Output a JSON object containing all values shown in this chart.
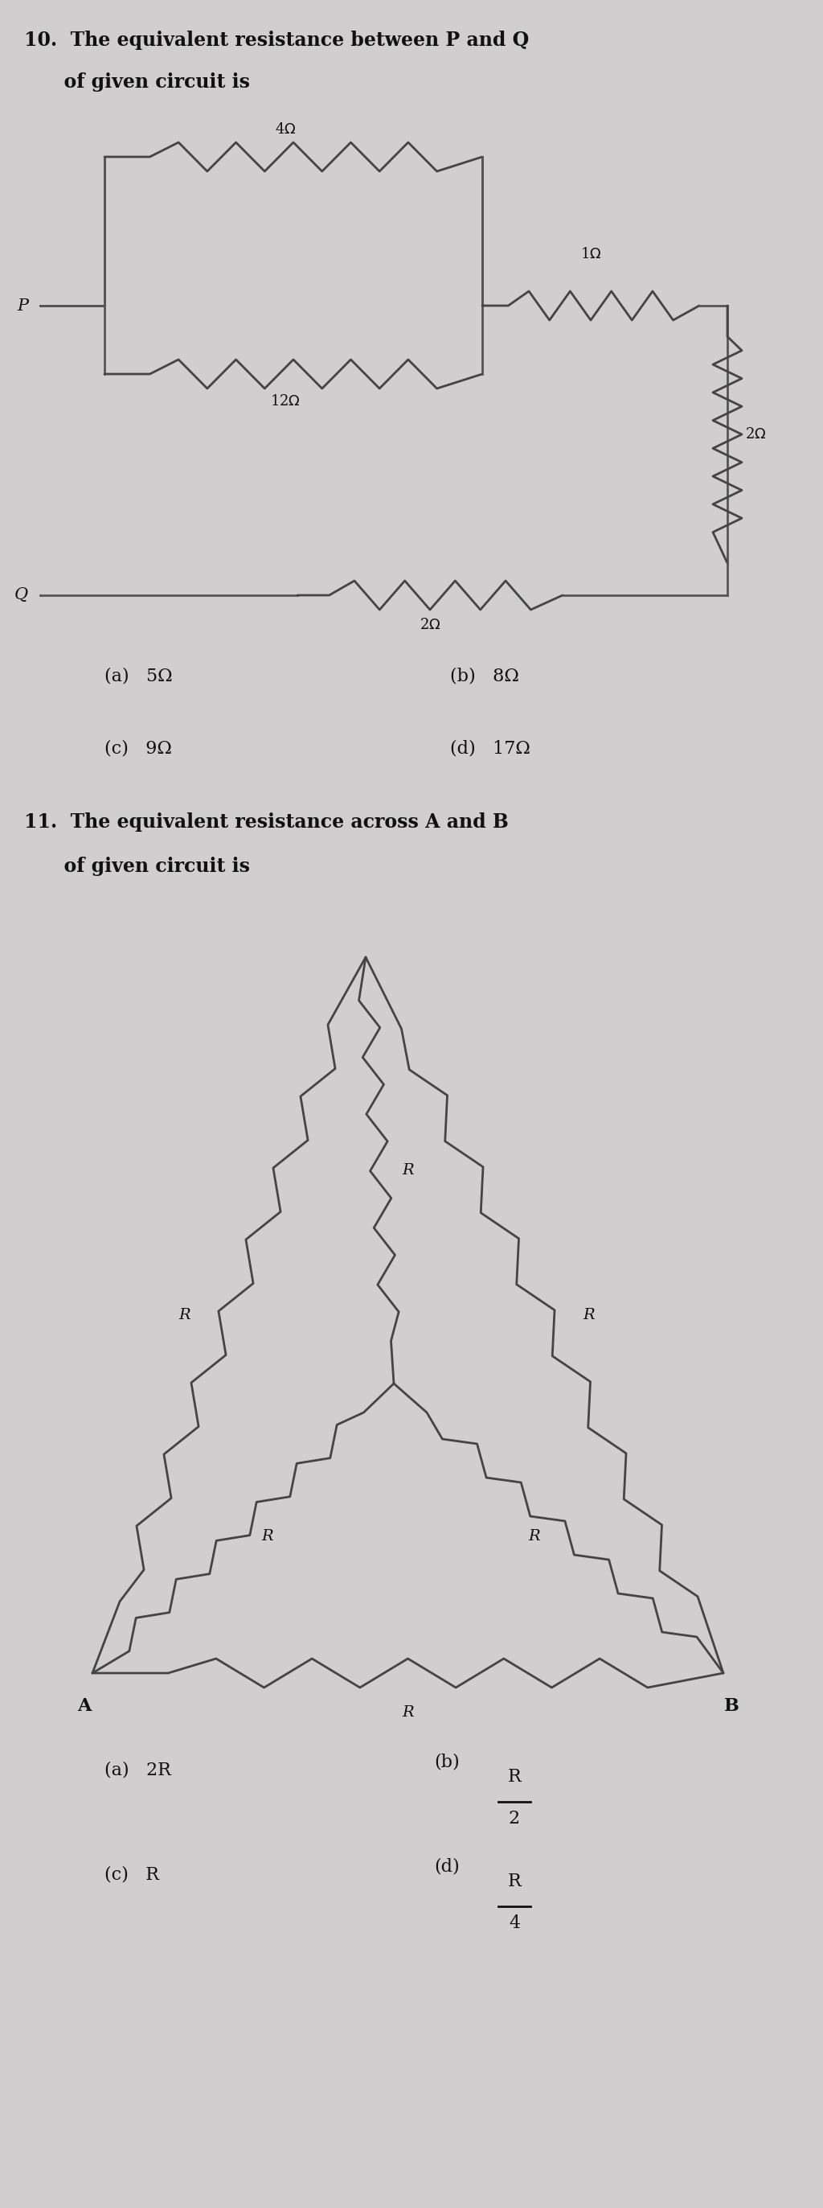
{
  "bg_color": "#d0cece",
  "text_color": "#111111",
  "circuit_color": "#555555",
  "resistor_color": "#444444",
  "title10_line1": "10.  The equivalent resistance between P and Q",
  "title10_line2": "      of given circuit is",
  "title11_line1": "11.  The equivalent resistance across A and B",
  "title11_line2": "      of given circuit is",
  "q10_a": "(a)   5Ω",
  "q10_b": "(b)   8Ω",
  "q10_c": "(c)   9Ω",
  "q10_d": "(d)   17Ω",
  "q11_a": "(a)   2R",
  "q11_c": "(c)   R"
}
